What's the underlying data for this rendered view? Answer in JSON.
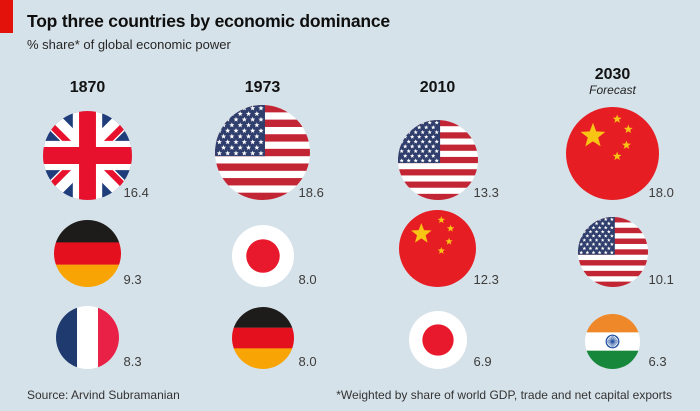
{
  "colors": {
    "background": "#d6e2e9",
    "accent_red": "#e3120b",
    "text": "#1a1a1a"
  },
  "chart_data": {
    "type": "pictogram",
    "title": "Top three countries by economic dominance",
    "subtitle": "% share* of global economic power",
    "sizing": "circle area proportional to value",
    "legend_position": "none",
    "columns": [
      {
        "year": "1870",
        "note": "",
        "entries": [
          {
            "rank": 1,
            "country": "Britain",
            "flag": "gb",
            "value": 16.4,
            "label": "16.4"
          },
          {
            "rank": 2,
            "country": "Germany",
            "flag": "de",
            "value": 9.3,
            "label": "9.3"
          },
          {
            "rank": 3,
            "country": "France",
            "flag": "fr",
            "value": 8.3,
            "label": "8.3"
          }
        ]
      },
      {
        "year": "1973",
        "note": "",
        "entries": [
          {
            "rank": 1,
            "country": "United States",
            "flag": "us",
            "value": 18.6,
            "label": "18.6"
          },
          {
            "rank": 2,
            "country": "Japan",
            "flag": "jp",
            "value": 8.0,
            "label": "8.0"
          },
          {
            "rank": 3,
            "country": "Germany",
            "flag": "de",
            "value": 8.0,
            "label": "8.0"
          }
        ]
      },
      {
        "year": "2010",
        "note": "",
        "entries": [
          {
            "rank": 1,
            "country": "United States",
            "flag": "us",
            "value": 13.3,
            "label": "13.3"
          },
          {
            "rank": 2,
            "country": "China",
            "flag": "cn",
            "value": 12.3,
            "label": "12.3"
          },
          {
            "rank": 3,
            "country": "Japan",
            "flag": "jp",
            "value": 6.9,
            "label": "6.9"
          }
        ]
      },
      {
        "year": "2030",
        "note": "Forecast",
        "entries": [
          {
            "rank": 1,
            "country": "China",
            "flag": "cn",
            "value": 18.0,
            "label": "18.0"
          },
          {
            "rank": 2,
            "country": "United States",
            "flag": "us",
            "value": 10.1,
            "label": "10.1"
          },
          {
            "rank": 3,
            "country": "India",
            "flag": "in",
            "value": 6.3,
            "label": "6.3"
          }
        ]
      }
    ],
    "source": "Source: Arvind Subramanian",
    "footnote": "*Weighted by share of world GDP, trade and net capital exports"
  }
}
